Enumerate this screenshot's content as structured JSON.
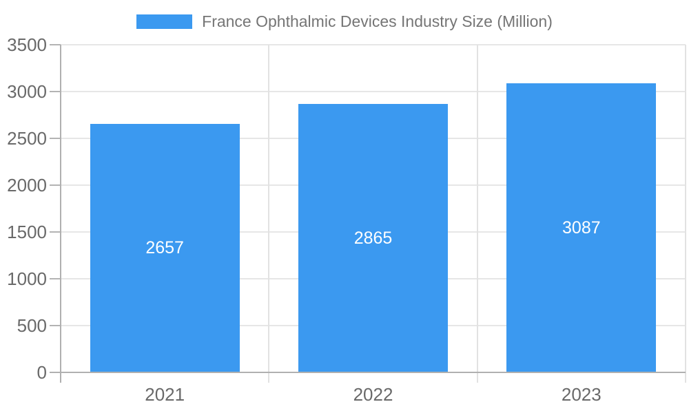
{
  "legend": {
    "label": "France Ophthalmic Devices Industry Size (Million)"
  },
  "chart_data": {
    "type": "bar",
    "title": "France Ophthalmic Devices Industry Size (Million)",
    "categories": [
      "2021",
      "2022",
      "2023"
    ],
    "values": [
      2657,
      2865,
      3087
    ],
    "series": [
      {
        "name": "France Ophthalmic Devices Industry Size (Million)",
        "values": [
          2657,
          2865,
          3087
        ]
      }
    ],
    "bar_value_labels": [
      "2657",
      "2865",
      "3087"
    ],
    "xlabel": "",
    "ylabel": "",
    "ylim": [
      0,
      3500
    ],
    "y_ticks": [
      0,
      500,
      1000,
      1500,
      2000,
      2500,
      3000,
      3500
    ],
    "grid": true,
    "legend_position": "top",
    "bar_color": "#3B99F0",
    "bar_label_color": "#ffffff",
    "colors": {
      "grid": "#e6e6e6",
      "axis": "#b0b0b0",
      "tick_label": "#696969",
      "title": "#757575",
      "background": "#ffffff"
    }
  }
}
